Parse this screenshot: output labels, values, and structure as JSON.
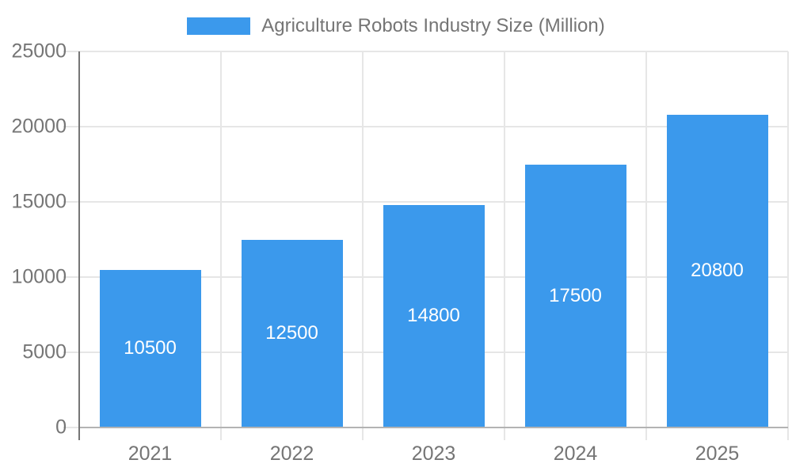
{
  "chart_data": {
    "type": "bar",
    "title": "Agriculture Robots Industry Size (Million)",
    "categories": [
      "2021",
      "2022",
      "2023",
      "2024",
      "2025"
    ],
    "values": [
      10500,
      12500,
      14800,
      17500,
      20800
    ],
    "value_labels": [
      "10500",
      "12500",
      "14800",
      "17500",
      "20800"
    ],
    "xlabel": "",
    "ylabel": "",
    "ylim": [
      0,
      25000
    ],
    "yticks": [
      0,
      5000,
      10000,
      15000,
      20000,
      25000
    ],
    "ytick_labels": [
      "0",
      "5000",
      "10000",
      "15000",
      "20000",
      "25000"
    ],
    "grid": "both",
    "legend_position": "top-center",
    "value_label_position": "center-of-bar"
  },
  "legend": {
    "label": "Agriculture Robots Industry Size (Million)"
  },
  "colors": {
    "bar": "#3B99EC",
    "grid": "#e6e6e6",
    "axis": "#757575",
    "baseline": "#b3b3b3",
    "text": "#757575",
    "value_text": "#ffffff",
    "background": "#ffffff"
  }
}
